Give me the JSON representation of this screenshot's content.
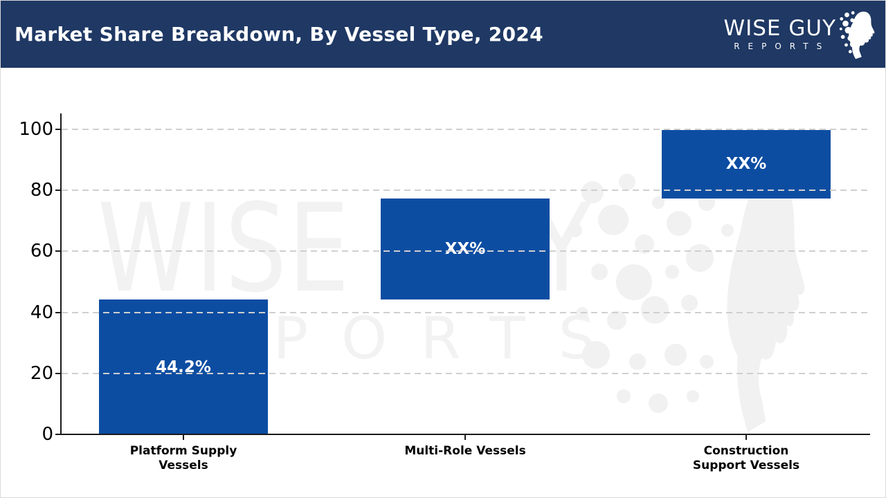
{
  "header": {
    "title": "Market Share Breakdown, By Vessel Type, 2024"
  },
  "logo": {
    "name": "WISE GUY",
    "subtitle": "REPORTS"
  },
  "watermark": {
    "line1": "WISE GUY",
    "line2": "REPORTS"
  },
  "chart_data": {
    "type": "bar",
    "subtype": "floating-waterfall-segments",
    "title": "Market Share Breakdown, By Vessel Type, 2024",
    "categories": [
      "Platform Supply\nVessels",
      "Multi-Role Vessels",
      "Construction\nSupport Vessels"
    ],
    "bars": [
      {
        "category": "Platform Supply Vessels",
        "start": 0,
        "end": 44.2,
        "label": "44.2%"
      },
      {
        "category": "Multi-Role Vessels",
        "start": 44.2,
        "end": 77.3,
        "label": "XX%"
      },
      {
        "category": "Construction Support Vessels",
        "start": 77.3,
        "end": 99.8,
        "label": "XX%"
      }
    ],
    "yticks": [
      0,
      20,
      40,
      60,
      80,
      100
    ],
    "ylim": [
      0,
      105
    ],
    "xlabel": "",
    "ylabel": "",
    "grid": "dashed-horizontal",
    "legend": "none"
  },
  "colors": {
    "header_bg": "#1f3864",
    "bar": "#0c4da2",
    "grid": "#cfcfcf",
    "axis": "#1a1a1a",
    "bar_label": "#ffffff",
    "watermark": "#f2f2f3",
    "watermark_face": "#f1f1f2"
  }
}
